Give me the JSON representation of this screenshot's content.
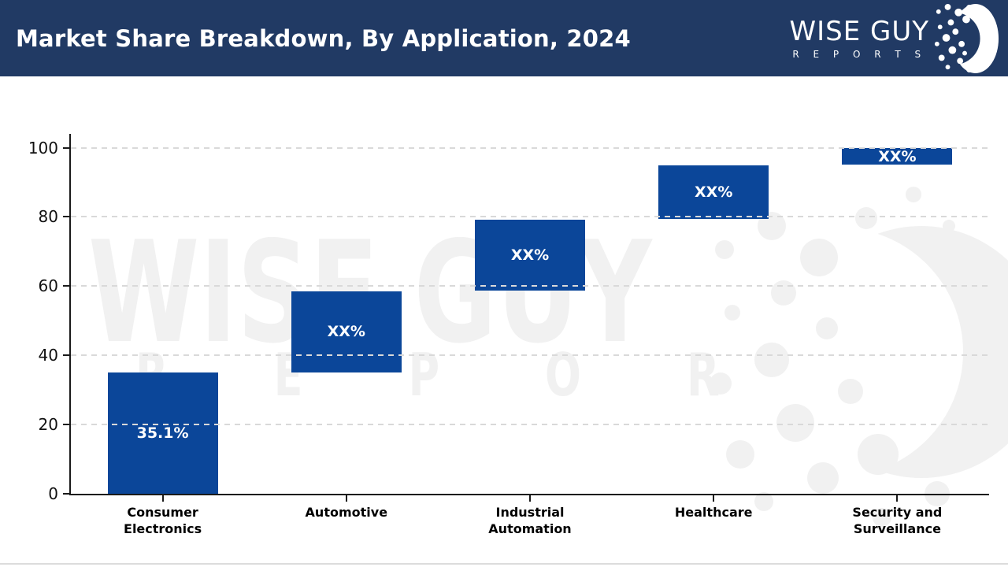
{
  "header": {
    "title": "Market Share Breakdown, By Application, 2024",
    "logo": {
      "line1": "WISE GUY",
      "line2": "R E P O R T S"
    }
  },
  "watermark": {
    "line1": "WISE GUY",
    "line2": "R E P O R T S"
  },
  "colors": {
    "header_bg": "#213a64",
    "bar": "#0b4699",
    "grid": "#d9d9d9",
    "axis": "#1a1a1a",
    "watermark": "#f1f1f1",
    "bar_label": "#ffffff"
  },
  "chart_data": {
    "type": "bar",
    "subtype": "waterfall",
    "title": "Market Share Breakdown, By Application, 2024",
    "xlabel": "",
    "ylabel": "",
    "ylim": [
      0,
      100
    ],
    "yticks": [
      0,
      20,
      40,
      60,
      80,
      100
    ],
    "grid": "dashed horizontal, drawn above bars",
    "legend": "none",
    "categories": [
      "Consumer Electronics",
      "Automotive",
      "Industrial Automation",
      "Healthcare",
      "Security and Surveillance"
    ],
    "segments": [
      {
        "category": "Consumer Electronics",
        "label_lines": [
          "Consumer",
          "Electronics"
        ],
        "start": 0,
        "end": 35.1,
        "label": "35.1%"
      },
      {
        "category": "Automotive",
        "label_lines": [
          "Automotive"
        ],
        "start": 35.1,
        "end": 58.6,
        "label": "XX%"
      },
      {
        "category": "Industrial Automation",
        "label_lines": [
          "Industrial",
          "Automation"
        ],
        "start": 58.7,
        "end": 79.1,
        "label": "XX%"
      },
      {
        "category": "Healthcare",
        "label_lines": [
          "Healthcare"
        ],
        "start": 79.5,
        "end": 95.0,
        "label": "XX%"
      },
      {
        "category": "Security and Surveillance",
        "label_lines": [
          "Security and",
          "Surveillance"
        ],
        "start": 95.1,
        "end": 99.8,
        "label": "XX%"
      }
    ]
  }
}
